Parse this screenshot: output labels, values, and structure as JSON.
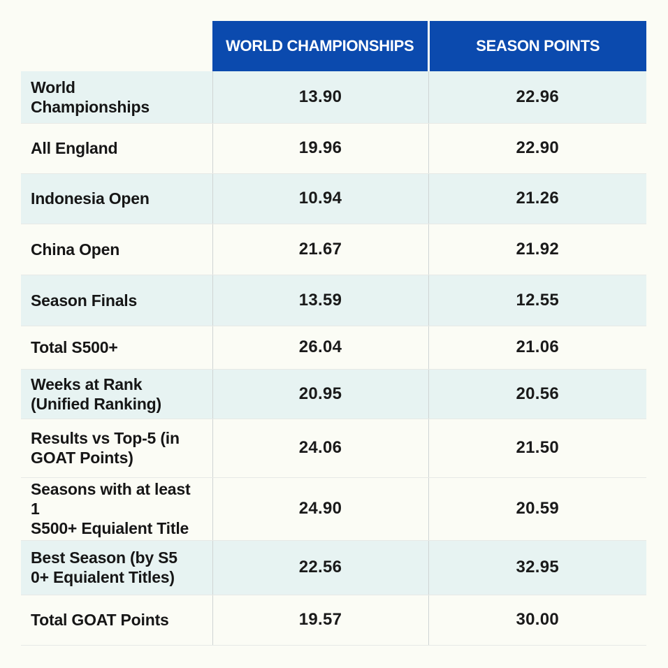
{
  "table": {
    "headers": [
      "",
      "WORLD CHAMPIONSHIPS",
      "SEASON POINTS"
    ],
    "rows": [
      {
        "label": "World\nChampionships",
        "values": [
          "13.90",
          "22.96"
        ]
      },
      {
        "label": "All England",
        "values": [
          "19.96",
          "22.90"
        ]
      },
      {
        "label": "Indonesia Open",
        "values": [
          "10.94",
          "21.26"
        ]
      },
      {
        "label": "China Open",
        "values": [
          "21.67",
          "21.92"
        ]
      },
      {
        "label": "Season Finals",
        "values": [
          "13.59",
          "12.55"
        ]
      },
      {
        "label": "Total S500+",
        "values": [
          "26.04",
          "21.06"
        ]
      },
      {
        "label": "Weeks at Rank\n(Unified Ranking)",
        "values": [
          "20.95",
          "20.56"
        ]
      },
      {
        "label": "Results vs Top-5 (in\nGOAT Points)",
        "values": [
          "24.06",
          "21.50"
        ]
      },
      {
        "label": "Seasons with at least\n1\nS500+ Equialent Title",
        "values": [
          "24.90",
          "20.59"
        ]
      },
      {
        "label": "Best Season (by S5\n0+ Equialent Titles)",
        "values": [
          "22.56",
          "32.95"
        ]
      },
      {
        "label": "Total GOAT Points",
        "values": [
          "19.57",
          "30.00"
        ]
      }
    ],
    "colors": {
      "header_bg": "#0b4aae",
      "header_text": "#ffffff",
      "row_shade": "#e7f3f2",
      "row_plain": "#fbfcf5"
    }
  }
}
